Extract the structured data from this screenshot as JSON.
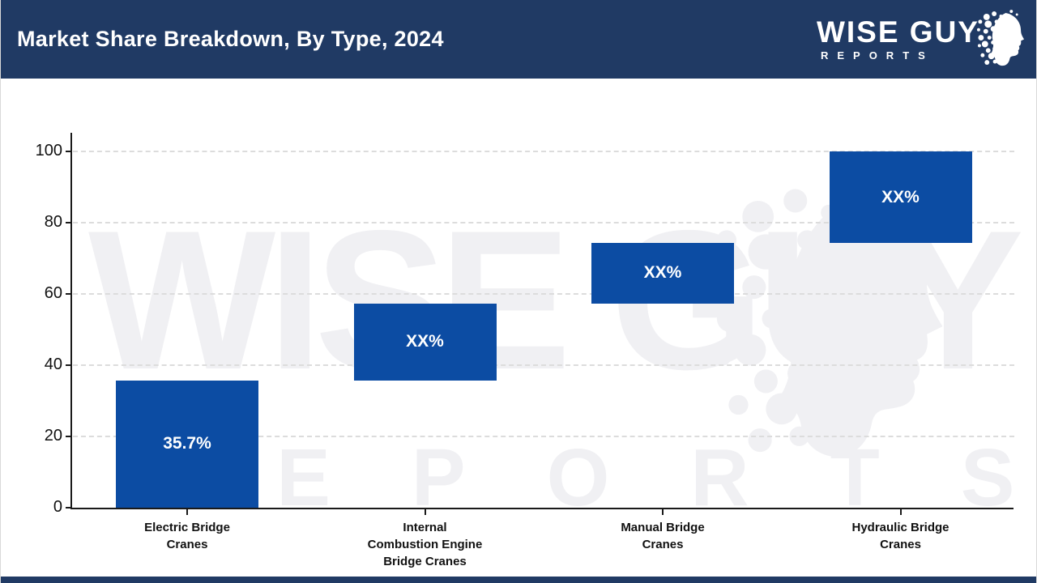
{
  "header": {
    "title": "Market Share Breakdown, By Type, 2024",
    "logo": {
      "name": "WISE GUY",
      "sub": "REPORTS"
    },
    "background": "#203A64"
  },
  "watermark": {
    "name": "WISE GUY",
    "sub": "REPORTS"
  },
  "chart_data": {
    "type": "bar",
    "subtype": "waterfall",
    "title": "Market Share Breakdown, By Type, 2024",
    "xlabel": "",
    "ylabel": "",
    "ylim": [
      0,
      100
    ],
    "yticks": [
      0,
      20,
      40,
      60,
      80,
      100
    ],
    "grid": {
      "axis": "y",
      "style": "dashed",
      "color": "#dcdcdc"
    },
    "legend": "none",
    "bar_color": "#0C4CA3",
    "value_label_color": "#ffffff",
    "categories": [
      "Electric Bridge Cranes",
      "Internal Combustion Engine Bridge Cranes",
      "Manual Bridge Cranes",
      "Hydraulic Bridge Cranes"
    ],
    "bars": [
      {
        "category_lines": [
          "Electric Bridge",
          "Cranes"
        ],
        "start": 0,
        "end": 35.7,
        "label": "35.7%"
      },
      {
        "category_lines": [
          "Internal",
          "Combustion Engine",
          "Bridge Cranes"
        ],
        "start": 35.7,
        "end": 57.3,
        "label": "XX%"
      },
      {
        "category_lines": [
          "Manual Bridge",
          "Cranes"
        ],
        "start": 57.3,
        "end": 74.3,
        "label": "XX%"
      },
      {
        "category_lines": [
          "Hydraulic Bridge",
          "Cranes"
        ],
        "start": 74.3,
        "end": 100,
        "label": "XX%"
      }
    ]
  }
}
